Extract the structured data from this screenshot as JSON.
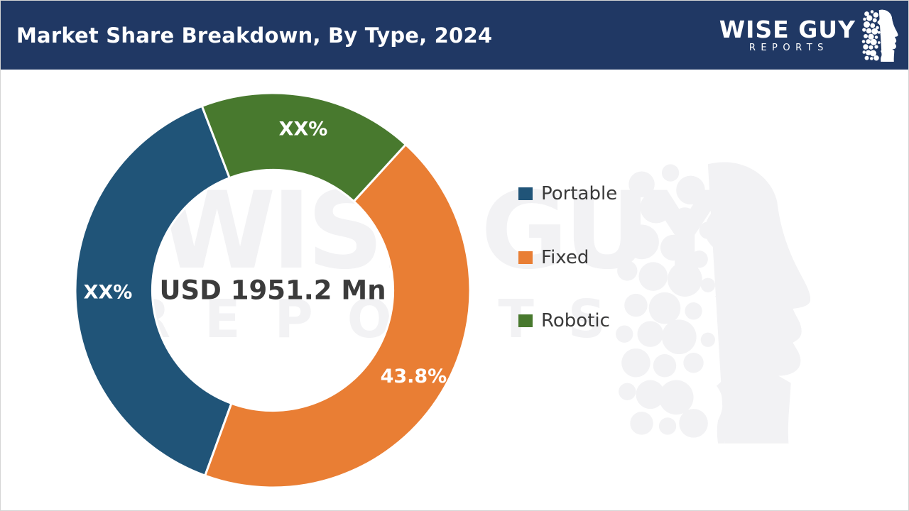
{
  "header": {
    "title": "Market Share Breakdown, By Type, 2024",
    "background_color": "#203864",
    "logo": {
      "line1": "WISE GUY",
      "line2": "REPORTS"
    }
  },
  "watermark": {
    "line1": "WISE GUY",
    "line2": "REPORTS"
  },
  "chart_data": {
    "type": "pie",
    "subtype": "donut",
    "title": "Market Share Breakdown, By Type, 2024",
    "center_label": "USD 1951.2 Mn",
    "center_label_color": "#3b3b3b",
    "legend_position": "right",
    "legend_text_color": "#3a3a3a",
    "start_angle_deg": 339,
    "direction": "counterclockwise",
    "inner_radius_ratio": 0.61,
    "slice_border_color": "#ffffff",
    "slice_label_color": "#ffffff",
    "series": [
      {
        "name": "Portable",
        "value_pct": 38.6,
        "label": "XX%",
        "color": "#205478"
      },
      {
        "name": "Fixed",
        "value_pct": 43.8,
        "label": "43.8%",
        "color": "#E97E34"
      },
      {
        "name": "Robotic",
        "value_pct": 17.6,
        "label": "XX%",
        "color": "#48792E"
      }
    ]
  }
}
